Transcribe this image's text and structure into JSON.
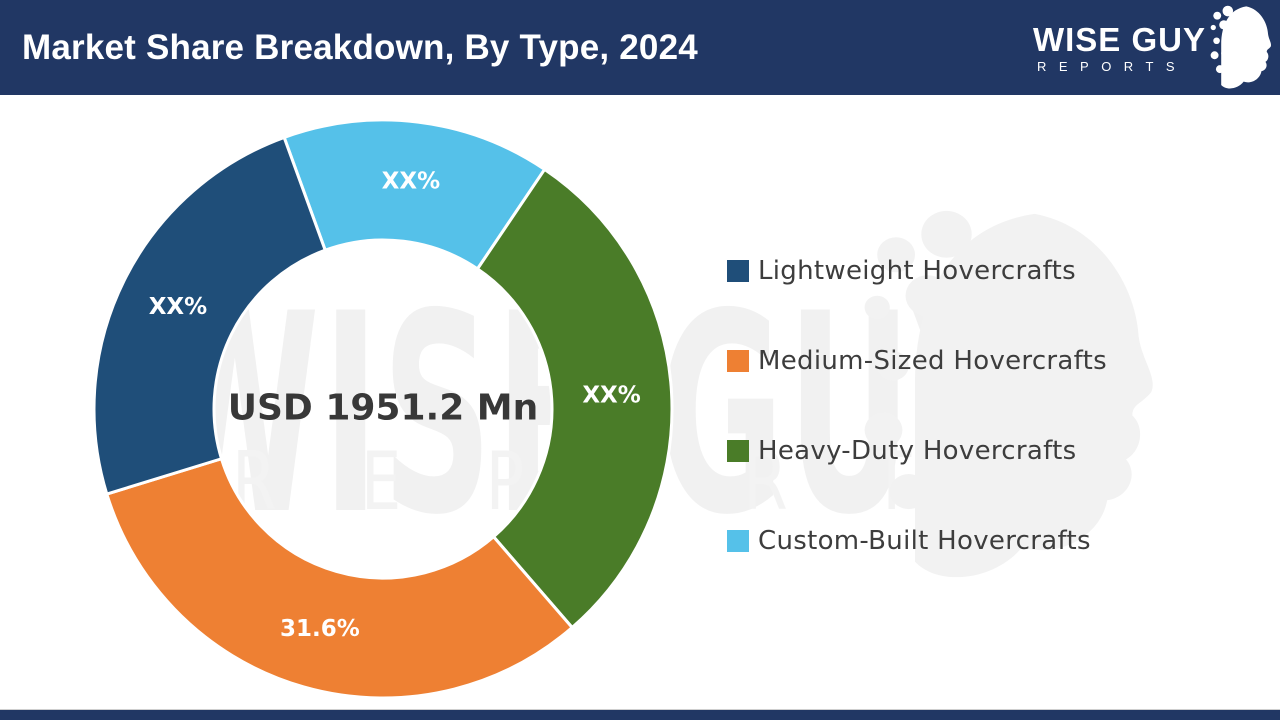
{
  "header": {
    "title": "Market Share Breakdown, By Type, 2024",
    "bg_color": "#213764",
    "logo": {
      "line1": "WISE GUY",
      "line2": "REPORTS"
    }
  },
  "chart_data": {
    "type": "pie",
    "donut": true,
    "title": "Market Share Breakdown, By Type, 2024",
    "center_label": "USD 1951.2 Mn",
    "total_value_usd_mn": 1951.2,
    "start_angle_deg": -20,
    "direction": "clockwise",
    "segments": [
      {
        "name": "Custom-Built Hovercrafts",
        "slice_label": "XX%",
        "percent": 15.0,
        "color": "#55C1E9"
      },
      {
        "name": "Heavy-Duty Hovercrafts",
        "slice_label": "XX%",
        "percent": 29.2,
        "color": "#4A7C28"
      },
      {
        "name": "Medium-Sized Hovercrafts",
        "slice_label": "31.6%",
        "percent": 31.6,
        "color": "#EE8033"
      },
      {
        "name": "Lightweight Hovercrafts",
        "slice_label": "XX%",
        "percent": 24.2,
        "color": "#1F4E79"
      }
    ],
    "legend_position": "right",
    "legend": [
      {
        "label": "Lightweight Hovercrafts",
        "color": "#1F4E79"
      },
      {
        "label": "Medium-Sized Hovercrafts",
        "color": "#EE8033"
      },
      {
        "label": "Heavy-Duty Hovercrafts",
        "color": "#4A7C28"
      },
      {
        "label": "Custom-Built Hovercrafts",
        "color": "#55C1E9"
      }
    ]
  },
  "watermark": {
    "line1": "WISE GUY",
    "line2": "R E P O R T S"
  },
  "footer": {
    "bg_color": "#213764"
  }
}
